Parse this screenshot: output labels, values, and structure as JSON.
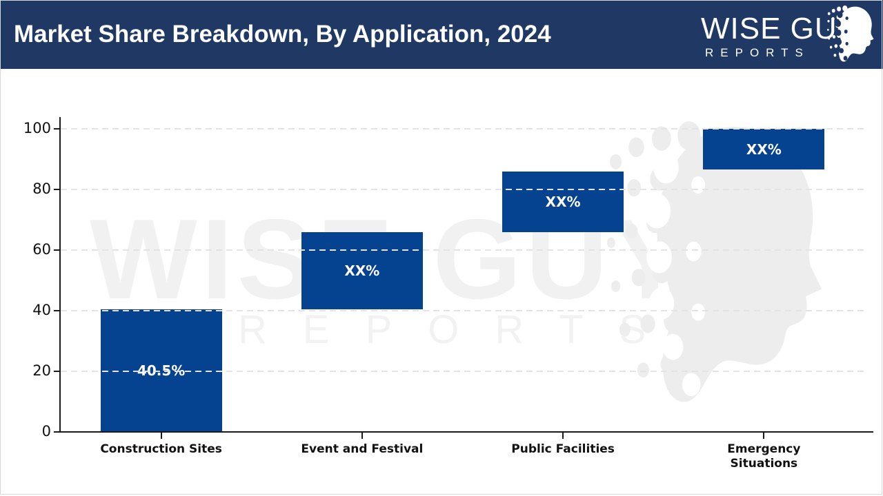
{
  "header": {
    "title": "Market Share Breakdown, By Application, 2024",
    "bg_color": "#1f3864",
    "logo": {
      "line1": "WISE GUY",
      "line2": "REPORTS"
    }
  },
  "watermark": {
    "line1": "WISE GUY",
    "line2": "REPORTS"
  },
  "chart_data": {
    "type": "bar",
    "variant": "floating-waterfall",
    "title": "Market Share Breakdown, By Application, 2024",
    "categories": [
      "Construction Sites",
      "Event and Festival",
      "Public Facilities",
      "Emergency\nSituations"
    ],
    "segments": [
      {
        "category": "Construction Sites",
        "start": 0,
        "end": 40.5,
        "label": "40.5%"
      },
      {
        "category": "Event and Festival",
        "start": 40.5,
        "end": 66,
        "label": "XX%"
      },
      {
        "category": "Public Facilities",
        "start": 66,
        "end": 86,
        "label": "XX%"
      },
      {
        "category": "Emergency Situations",
        "start": 86.5,
        "end": 100,
        "label": "XX%"
      }
    ],
    "ylim": [
      0,
      100
    ],
    "yticks": [
      0,
      20,
      40,
      60,
      80,
      100
    ],
    "grid": "horizontal-dashed",
    "legend": "none",
    "bar_color": "#05428f",
    "bar_label_color": "#ffffff",
    "axis_color": "#1a1a1a"
  }
}
